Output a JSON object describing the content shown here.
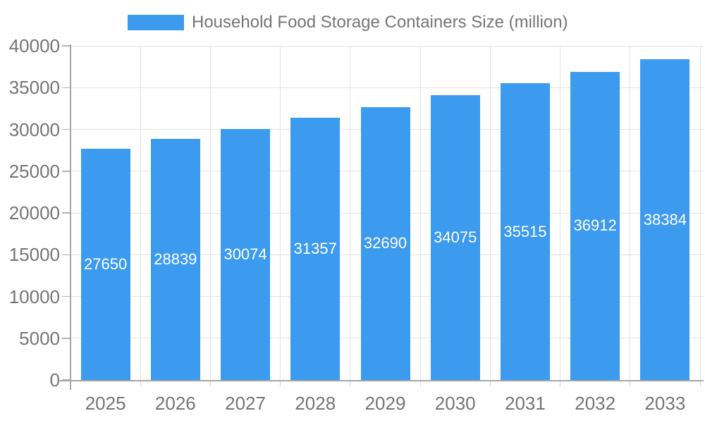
{
  "chart_data": {
    "type": "bar",
    "title": "Household Food Storage Containers Size (million)",
    "legend_entries": [
      "Household Food Storage Containers Size (million)"
    ],
    "legend_position": "top-center",
    "categories": [
      "2025",
      "2026",
      "2027",
      "2028",
      "2029",
      "2030",
      "2031",
      "2032",
      "2033"
    ],
    "values": [
      27650,
      28839,
      30074,
      31357,
      32690,
      34075,
      35515,
      36912,
      38384
    ],
    "value_labels": [
      "27650",
      "28839",
      "30074",
      "31357",
      "32690",
      "34075",
      "35515",
      "36912",
      "38384"
    ],
    "xlabel": "",
    "ylabel": "",
    "ylim": [
      0,
      40000
    ],
    "ytick_step": 5000,
    "ytick_labels": [
      "0",
      "5000",
      "10000",
      "15000",
      "20000",
      "25000",
      "30000",
      "35000",
      "40000"
    ],
    "grid": true,
    "value_label_position": "inside-center"
  },
  "colors": {
    "background": "#FFFFFF",
    "bar": "#3C9AEF",
    "axis_line": "#A6A6A6",
    "grid_line": "#E3E3E3",
    "boundary_tick_line": "#CFCFCF",
    "y_tick_line": "#B3B3B3",
    "tick_label_text": "#757575",
    "legend_text": "#757575",
    "value_label_text": "#FFFFFF"
  }
}
